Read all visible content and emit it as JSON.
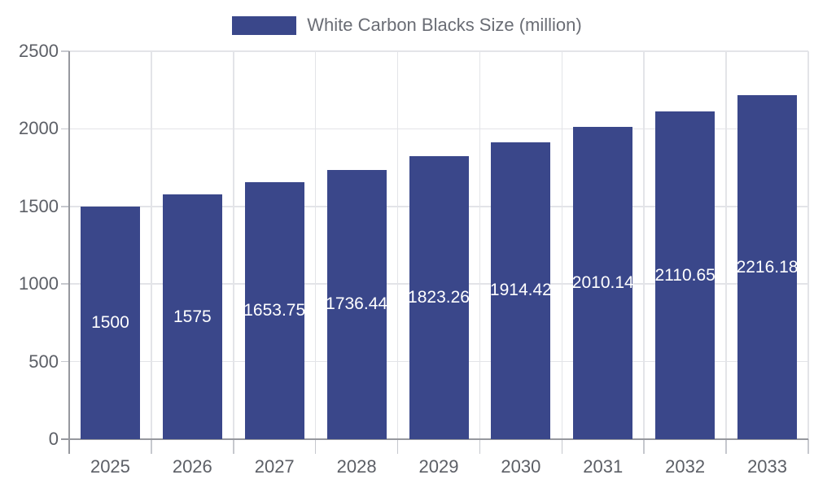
{
  "legend": {
    "label": "White Carbon Blacks Size (million)"
  },
  "chart_data": {
    "type": "bar",
    "title": "",
    "categories": [
      "2025",
      "2026",
      "2027",
      "2028",
      "2029",
      "2030",
      "2031",
      "2032",
      "2033"
    ],
    "series": [
      {
        "name": "White Carbon Blacks Size (million)",
        "values": [
          1500,
          1575,
          1653.75,
          1736.44,
          1823.26,
          1914.42,
          2010.14,
          2110.65,
          2216.18
        ]
      }
    ],
    "value_labels": [
      "1500",
      "1575",
      "1653.75",
      "1736.44",
      "1823.26",
      "1914.42",
      "2010.14",
      "2110.65",
      "2216.18"
    ],
    "xlabel": "",
    "ylabel": "",
    "y_ticks": [
      0,
      500,
      1000,
      1500,
      2000,
      2500
    ],
    "ylim": [
      0,
      2500
    ],
    "grid": true,
    "legend_position": "top"
  },
  "colors": {
    "bar": "#3A478A",
    "bar_label": "#FFFFFF",
    "grid": "#E3E4E8",
    "axis": "#96989E",
    "tick": "#C6C8CE",
    "axis_label": "#5C5F66",
    "legend_text": "#6A6D75",
    "background": "#FFFFFF"
  }
}
